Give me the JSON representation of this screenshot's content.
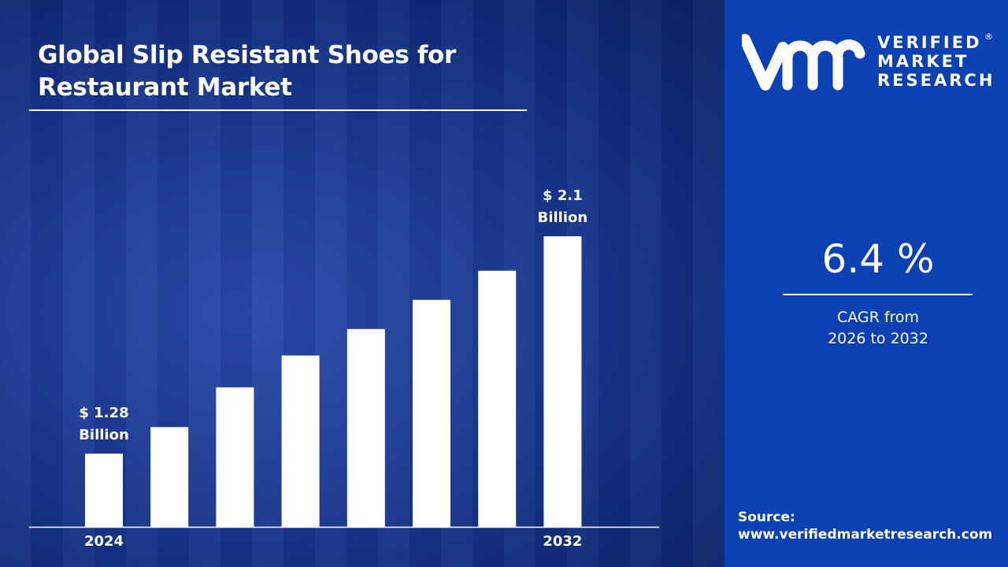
{
  "title": "Global Slip Resistant Shoes for Restaurant Market",
  "chart_data": {
    "type": "bar",
    "categories": [
      "2024",
      "",
      "",
      "",
      "",
      "",
      "",
      "2032"
    ],
    "values": [
      1.28,
      1.38,
      1.53,
      1.65,
      1.75,
      1.86,
      1.97,
      2.1
    ],
    "ylim": [
      1.0,
      2.1
    ],
    "annotations": [
      {
        "index": 0,
        "line1": "$ 1.28",
        "line2": "Billion"
      },
      {
        "index": 7,
        "line1": "$ 2.1",
        "line2": "Billion"
      }
    ],
    "bar_color": "#ffffff",
    "grid": false
  },
  "logo": {
    "line1": "VERIFIED",
    "line2": "MARKET",
    "line3": "RESEARCH",
    "reg": "®"
  },
  "cagr": {
    "value": "6.4 %",
    "line1": "CAGR from",
    "line2": "2026 to 2032"
  },
  "source": {
    "label": "Source:",
    "url": "www.verifiedmarketresearch.com"
  },
  "colors": {
    "panel": "#0b41b2",
    "background": "#1a3a92"
  }
}
